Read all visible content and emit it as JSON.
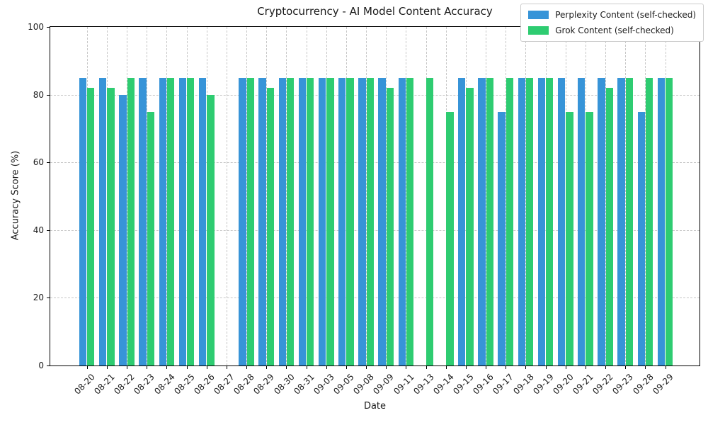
{
  "title": "Cryptocurrency - AI Model Content Accuracy",
  "axes": {
    "xlabel": "Date",
    "ylabel": "Accuracy Score (%)"
  },
  "legend": {
    "items": [
      {
        "label": "Perplexity Content (self-checked)",
        "color": "#3794d8"
      },
      {
        "label": "Grok Content (self-checked)",
        "color": "#2ecc71"
      }
    ]
  },
  "chart_data": {
    "type": "bar",
    "title": "Cryptocurrency - AI Model Content Accuracy",
    "xlabel": "Date",
    "ylabel": "Accuracy Score (%)",
    "ylim": [
      0,
      100
    ],
    "yticks": [
      0,
      20,
      40,
      60,
      80,
      100
    ],
    "grid": true,
    "legend_position": "upper right",
    "categories": [
      "08-20",
      "08-21",
      "08-22",
      "08-23",
      "08-24",
      "08-25",
      "08-26",
      "08-27",
      "08-28",
      "08-29",
      "08-30",
      "08-31",
      "09-03",
      "09-05",
      "09-08",
      "09-09",
      "09-11",
      "09-13",
      "09-14",
      "09-15",
      "09-16",
      "09-17",
      "09-18",
      "09-19",
      "09-20",
      "09-21",
      "09-22",
      "09-23",
      "09-28",
      "09-29"
    ],
    "series": [
      {
        "name": "Perplexity Content (self-checked)",
        "color": "#3794d8",
        "values": [
          85,
          85,
          80,
          85,
          85,
          85,
          85,
          null,
          85,
          85,
          85,
          85,
          85,
          85,
          85,
          85,
          85,
          null,
          null,
          85,
          85,
          75,
          85,
          85,
          85,
          85,
          85,
          85,
          75,
          85
        ]
      },
      {
        "name": "Grok Content (self-checked)",
        "color": "#2ecc71",
        "values": [
          82,
          82,
          85,
          75,
          85,
          85,
          80,
          null,
          85,
          82,
          85,
          85,
          85,
          85,
          85,
          82,
          85,
          85,
          75,
          82,
          85,
          85,
          85,
          85,
          75,
          75,
          82,
          85,
          85,
          85
        ]
      }
    ]
  }
}
